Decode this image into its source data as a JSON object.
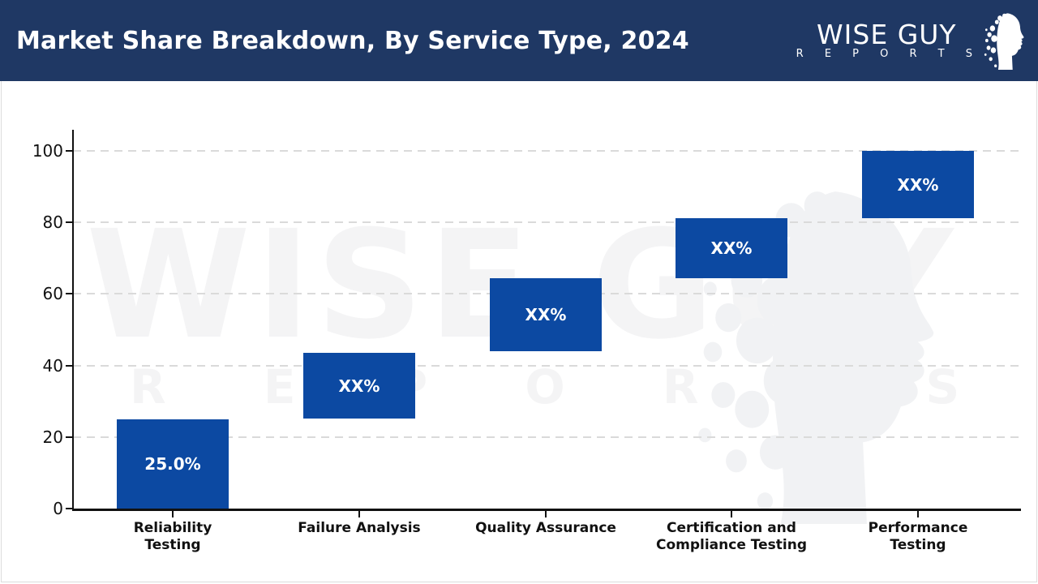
{
  "header": {
    "title": "Market Share Breakdown, By Service Type, 2024",
    "logo": {
      "line1": "WISE GUY",
      "line2": "R E P O R T S"
    }
  },
  "watermark": {
    "line1": "WISE GUY",
    "line2": "R E P O R T S"
  },
  "colors": {
    "header_bg": "#1f3864",
    "bar_blue": "#0c49a2",
    "axis": "#111111",
    "gridline": "#dadada",
    "watermark": "#f4f4f5",
    "label_on_bar": "#ffffff"
  },
  "chart_data": {
    "type": "bar",
    "subtype": "waterfall",
    "title": "Market Share Breakdown, By Service Type, 2024",
    "categories": [
      "Reliability\nTesting",
      "Failure Analysis",
      "Quality Assurance",
      "Certification and\nCompliance Testing",
      "Performance\nTesting"
    ],
    "segments": [
      {
        "category": "Reliability Testing",
        "start": 0,
        "end": 25,
        "label": "25.0%"
      },
      {
        "category": "Failure Analysis",
        "start": 25.2,
        "end": 43.5,
        "label": "XX%"
      },
      {
        "category": "Quality Assurance",
        "start": 44,
        "end": 64.4,
        "label": "XX%"
      },
      {
        "category": "Certification and Compliance Testing",
        "start": 64.4,
        "end": 81.2,
        "label": "XX%"
      },
      {
        "category": "Performance Testing",
        "start": 81.2,
        "end": 100,
        "label": "XX%"
      }
    ],
    "yticks": [
      0,
      20,
      40,
      60,
      80,
      100
    ],
    "ylim": [
      0,
      104
    ],
    "xlabel": "",
    "ylabel": "",
    "grid": "horizontal-dashed",
    "legend": "none"
  }
}
